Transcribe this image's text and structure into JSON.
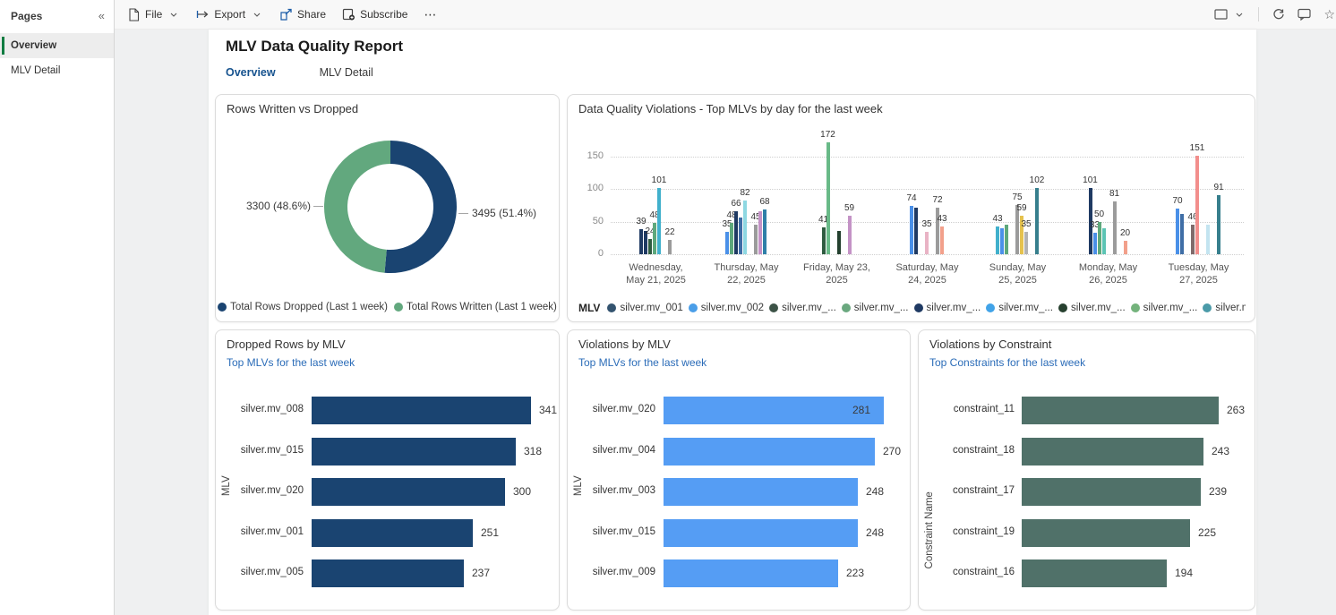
{
  "sidebar": {
    "title": "Pages",
    "collapse_glyph": "«",
    "items": [
      {
        "label": "Overview",
        "selected": true
      },
      {
        "label": "MLV Detail",
        "selected": false
      }
    ]
  },
  "toolbar": {
    "file": "File",
    "export": "Export",
    "share": "Share",
    "subscribe": "Subscribe",
    "more": "⋯",
    "star": "☆"
  },
  "report": {
    "title": "MLV Data Quality Report",
    "tabs": [
      {
        "label": "Overview",
        "active": true
      },
      {
        "label": "MLV Detail",
        "active": false
      }
    ]
  },
  "chart_data": [
    {
      "id": "rows_written_vs_dropped",
      "type": "pie",
      "title": "Rows Written vs Dropped",
      "slices": [
        {
          "name": "Total Rows Dropped (Last 1 week)",
          "value": 3495,
          "pct": 51.4,
          "label": "3495 (51.4%)",
          "color": "#1a4471"
        },
        {
          "name": "Total Rows Written (Last 1 week)",
          "value": 3300,
          "pct": 48.6,
          "label": "3300 (48.6%)",
          "color": "#62a87e"
        }
      ],
      "legend_position": "bottom"
    },
    {
      "id": "violations_by_day",
      "type": "bar",
      "title": "Data Quality Violations - Top MLVs by day for the last week",
      "ylim": [
        0,
        175
      ],
      "yticks": [
        0,
        50,
        100,
        150
      ],
      "grid": "dotted",
      "legend_title": "MLV",
      "legend": [
        {
          "label": "silver.mv_001",
          "color": "#33536f"
        },
        {
          "label": "silver.mv_002",
          "color": "#4a9ee8"
        },
        {
          "label": "silver.mv_...",
          "color": "#3d5347"
        },
        {
          "label": "silver.mv_...",
          "color": "#6aa87f"
        },
        {
          "label": "silver.mv_...",
          "color": "#1f3a63"
        },
        {
          "label": "silver.mv_...",
          "color": "#41a3e8"
        },
        {
          "label": "silver.mv_...",
          "color": "#27402f"
        },
        {
          "label": "silver.mv_...",
          "color": "#74b37c"
        },
        {
          "label": "silver.mv_...",
          "color": "#4b9aa8"
        }
      ],
      "legend_next_glyph": "▶",
      "palette": {
        "navy": "#1f3a63",
        "blue": "#4a90e8",
        "steel": "#3f6ea6",
        "dgreen": "#2f5c41",
        "ddgreen": "#23402e",
        "green": "#5ea87c",
        "lgreen": "#69ba88",
        "cyan": "#41b0cc",
        "lcyan": "#8ed8e2",
        "paleblue": "#c3e4f0",
        "teal": "#377f8d",
        "tealblue": "#2e7fa8",
        "mint": "#5cc4b4",
        "gray": "#9b9b9b",
        "lgray": "#b3b3b3",
        "yellow": "#e5c24e",
        "pink": "#c493c6",
        "rose": "#e9b3c5",
        "salmon": "#f2a08b",
        "orange": "#f2a478",
        "red": "#f28e8c",
        "maroon": "#806a6b"
      },
      "days": [
        {
          "label": "Wednesday, May 21, 2025",
          "bars": [
            {
              "v": 39,
              "c": "navy",
              "l": "39"
            },
            {
              "v": 36,
              "c": "navy",
              "l": null
            },
            {
              "v": 24,
              "c": "dgreen",
              "l": "24"
            },
            {
              "v": 48,
              "c": "green",
              "l": "48"
            },
            {
              "v": 101,
              "c": "cyan",
              "l": "101"
            },
            {
              "v": 22,
              "c": "gray",
              "l": "22",
              "g": 1
            }
          ]
        },
        {
          "label": "Thursday, May 22, 2025",
          "bars": [
            {
              "v": 35,
              "c": "blue",
              "l": "35"
            },
            {
              "v": 48,
              "c": "green",
              "l": "48"
            },
            {
              "v": 66,
              "c": "navy",
              "l": "66"
            },
            {
              "v": 57,
              "c": "steel",
              "l": null
            },
            {
              "v": 82,
              "c": "lcyan",
              "l": "82"
            },
            {
              "v": 45,
              "c": "gray",
              "l": "45",
              "g": 1
            },
            {
              "v": 66,
              "c": "pink",
              "l": null
            },
            {
              "v": 68,
              "c": "tealblue",
              "l": "68"
            }
          ]
        },
        {
          "label": "Friday, May 23, 2025",
          "bars": [
            {
              "v": 41,
              "c": "dgreen",
              "l": "41"
            },
            {
              "v": 172,
              "c": "lgreen",
              "l": "172"
            },
            {
              "v": 36,
              "c": "ddgreen",
              "l": null,
              "g": 1
            },
            {
              "v": 59,
              "c": "pink",
              "l": "59",
              "g": 1
            }
          ]
        },
        {
          "label": "Saturday, May 24, 2025",
          "bars": [
            {
              "v": 74,
              "c": "blue",
              "l": "74"
            },
            {
              "v": 72,
              "c": "navy",
              "l": null
            },
            {
              "v": 35,
              "c": "rose",
              "l": "35",
              "g": 1
            },
            {
              "v": 72,
              "c": "gray",
              "l": "72",
              "g": 1
            },
            {
              "v": 43,
              "c": "salmon",
              "l": "43"
            }
          ]
        },
        {
          "label": "Sunday, May 25, 2025",
          "bars": [
            {
              "v": 43,
              "c": "cyan",
              "l": "43"
            },
            {
              "v": 40,
              "c": "blue",
              "l": null
            },
            {
              "v": 45,
              "c": "green",
              "l": null
            },
            {
              "v": 75,
              "c": "gray",
              "l": "75",
              "g": 1
            },
            {
              "v": 59,
              "c": "yellow",
              "l": "59"
            },
            {
              "v": 35,
              "c": "lgray",
              "l": "35"
            },
            {
              "v": 102,
              "c": "teal",
              "l": "102",
              "g": 1
            }
          ]
        },
        {
          "label": "Monday, May 26, 2025",
          "bars": [
            {
              "v": 101,
              "c": "navy",
              "l": "101"
            },
            {
              "v": 33,
              "c": "blue",
              "l": "33"
            },
            {
              "v": 50,
              "c": "green",
              "l": "50"
            },
            {
              "v": 40,
              "c": "mint",
              "l": null
            },
            {
              "v": 81,
              "c": "gray",
              "l": "81",
              "g": 1
            },
            {
              "v": 20,
              "c": "salmon",
              "l": "20",
              "g": 1
            }
          ]
        },
        {
          "label": "Tuesday, May 27, 2025",
          "bars": [
            {
              "v": 70,
              "c": "blue",
              "l": "70"
            },
            {
              "v": 62,
              "c": "steel",
              "l": null
            },
            {
              "v": 46,
              "c": "maroon",
              "l": "46",
              "g": 1
            },
            {
              "v": 151,
              "c": "red",
              "l": "151"
            },
            {
              "v": 45,
              "c": "paleblue",
              "l": null,
              "g": 1
            },
            {
              "v": 91,
              "c": "teal",
              "l": "91",
              "g": 1
            }
          ]
        }
      ]
    },
    {
      "id": "dropped_rows_by_mlv",
      "type": "bar",
      "title": "Dropped Rows by MLV",
      "subtitle": "Top MLVs for the last week",
      "ylabel": "MLV",
      "color": "#1a4471",
      "rows": [
        {
          "label": "silver.mv_008",
          "value": 341
        },
        {
          "label": "silver.mv_015",
          "value": 318
        },
        {
          "label": "silver.mv_020",
          "value": 300
        },
        {
          "label": "silver.mv_001",
          "value": 251
        },
        {
          "label": "silver.mv_005",
          "value": 237
        }
      ]
    },
    {
      "id": "violations_by_mlv",
      "type": "bar",
      "title": "Violations by MLV",
      "subtitle": "Top MLVs for the last week",
      "ylabel": "MLV",
      "color": "#559df4",
      "rows": [
        {
          "label": "silver.mv_020",
          "value": 281,
          "label_inside": true
        },
        {
          "label": "silver.mv_004",
          "value": 270
        },
        {
          "label": "silver.mv_003",
          "value": 248
        },
        {
          "label": "silver.mv_015",
          "value": 248
        },
        {
          "label": "silver.mv_009",
          "value": 223
        }
      ]
    },
    {
      "id": "violations_by_constraint",
      "type": "bar",
      "title": "Violations by Constraint",
      "subtitle": "Top Constraints for the last week",
      "ylabel": "Constraint Name",
      "color": "#507169",
      "rows": [
        {
          "label": "constraint_11",
          "value": 263
        },
        {
          "label": "constraint_18",
          "value": 243
        },
        {
          "label": "constraint_17",
          "value": 239
        },
        {
          "label": "constraint_19",
          "value": 225
        },
        {
          "label": "constraint_16",
          "value": 194
        }
      ]
    }
  ]
}
